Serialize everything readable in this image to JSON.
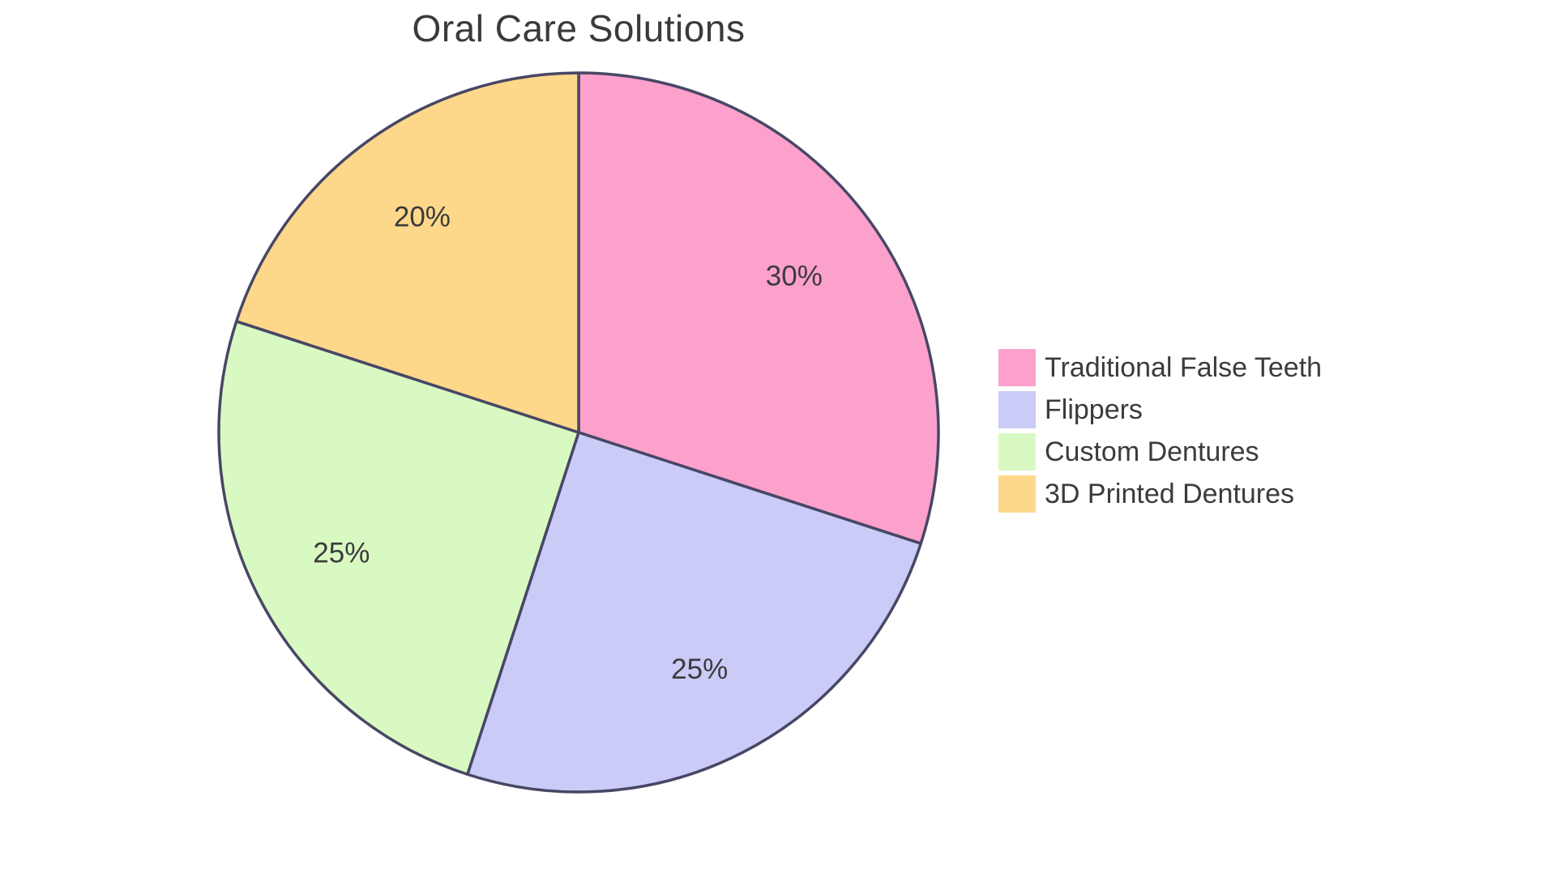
{
  "page": {
    "background": "#ffffff"
  },
  "chart_data": {
    "type": "pie",
    "title": "Oral Care Solutions",
    "slices": [
      {
        "label": "Traditional False Teeth",
        "value": 30,
        "percent_label": "30%",
        "color": "#FCA0CC"
      },
      {
        "label": "Flippers",
        "value": 25,
        "percent_label": "25%",
        "color": "#CACBF7"
      },
      {
        "label": "Custom Dentures",
        "value": 25,
        "percent_label": "25%",
        "color": "#D9F9C2"
      },
      {
        "label": "3D Printed Dentures",
        "value": 20,
        "percent_label": "20%",
        "color": "#FDD88B"
      }
    ],
    "start_angle": "12-oclock",
    "direction": "clockwise",
    "radius_px": 444,
    "label_radius_fraction": 0.74,
    "edge_color": "#474765",
    "edge_width": 3.5,
    "text_color": "#3B3B3B",
    "legend_position": "right",
    "grid": false
  }
}
